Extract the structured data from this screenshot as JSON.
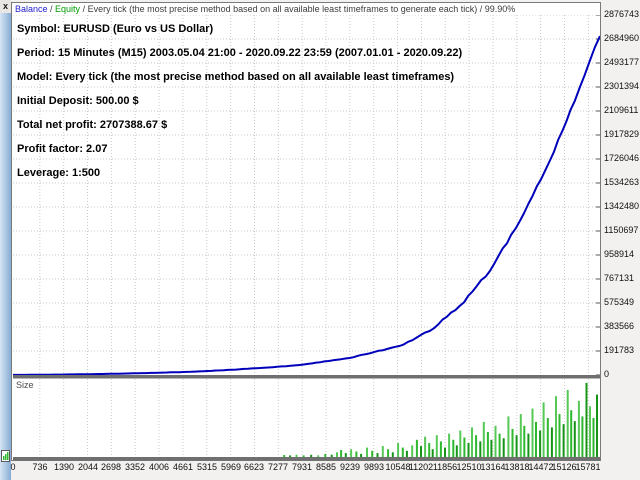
{
  "window": {
    "close_label": "x"
  },
  "header": {
    "balance_label": "Balance",
    "separator": " / ",
    "equity_label": "Equity",
    "tail_text": " / Every tick (the most precise method based on all available least timeframes to generate each tick) / 99.90%",
    "balance_color": "#2222cc",
    "equity_color": "#009900"
  },
  "info_lines": [
    "Symbol: EURUSD (Euro vs US Dollar)",
    "Period: 15 Minutes (M15) 2003.05.04 21:00 - 2020.09.22 23:59 (2007.01.01 - 2020.09.22)",
    "Model: Every tick (the most precise method based on all available least timeframes)",
    "Initial Deposit: 500.00 $",
    "Total net profit: 2707388.67 $",
    "Profit factor: 2.07",
    "Leverage: 1:500"
  ],
  "size_panel": {
    "label": "Size"
  },
  "chart_data": {
    "type": "line",
    "title": "Balance / Equity",
    "grid": "dotted",
    "x_range": [
      0,
      16100
    ],
    "y_range": [
      0,
      2876743
    ],
    "x_ticks": [
      0,
      736,
      1390,
      2044,
      2698,
      3352,
      4006,
      4661,
      5315,
      5969,
      6623,
      7277,
      7931,
      8585,
      9239,
      9893,
      10548,
      11202,
      11856,
      12510,
      13164,
      13818,
      14472,
      15126,
      15781
    ],
    "y_ticks": [
      2876743,
      2684960,
      2493177,
      2301394,
      2109611,
      1917829,
      1726046,
      1534263,
      1342480,
      1150697,
      958914,
      767131,
      575349,
      383566,
      191783,
      0
    ],
    "series": [
      {
        "name": "Balance",
        "color": "#0000bb",
        "points": [
          [
            0,
            500
          ],
          [
            1000,
            2500
          ],
          [
            2000,
            6000
          ],
          [
            3000,
            11000
          ],
          [
            4000,
            18000
          ],
          [
            5000,
            27000
          ],
          [
            6000,
            42000
          ],
          [
            7000,
            60000
          ],
          [
            7860,
            80000
          ],
          [
            9230,
            136000
          ],
          [
            10600,
            232000
          ],
          [
            11430,
            352000
          ],
          [
            12250,
            551000
          ],
          [
            13080,
            831000
          ],
          [
            13900,
            1230000
          ],
          [
            14720,
            1710000
          ],
          [
            15410,
            2190000
          ],
          [
            15820,
            2510000
          ],
          [
            16100,
            2707889
          ]
        ]
      }
    ],
    "size_histogram": {
      "colors": [
        "#2eb82e",
        "#169416",
        "#55c855"
      ],
      "bars": [
        [
          0.462,
          0.025
        ],
        [
          0.472,
          0.02
        ],
        [
          0.483,
          0.03
        ],
        [
          0.495,
          0.02
        ],
        [
          0.508,
          0.028
        ],
        [
          0.52,
          0.022
        ],
        [
          0.532,
          0.04
        ],
        [
          0.543,
          0.03
        ],
        [
          0.552,
          0.06
        ],
        [
          0.559,
          0.09
        ],
        [
          0.567,
          0.05
        ],
        [
          0.576,
          0.1
        ],
        [
          0.585,
          0.07
        ],
        [
          0.593,
          0.04
        ],
        [
          0.603,
          0.12
        ],
        [
          0.612,
          0.08
        ],
        [
          0.621,
          0.05
        ],
        [
          0.63,
          0.14
        ],
        [
          0.639,
          0.1
        ],
        [
          0.647,
          0.06
        ],
        [
          0.656,
          0.18
        ],
        [
          0.664,
          0.12
        ],
        [
          0.671,
          0.08
        ],
        [
          0.68,
          0.15
        ],
        [
          0.688,
          0.22
        ],
        [
          0.695,
          0.14
        ],
        [
          0.702,
          0.26
        ],
        [
          0.709,
          0.18
        ],
        [
          0.715,
          0.1
        ],
        [
          0.722,
          0.28
        ],
        [
          0.729,
          0.2
        ],
        [
          0.736,
          0.12
        ],
        [
          0.743,
          0.3
        ],
        [
          0.75,
          0.22
        ],
        [
          0.756,
          0.15
        ],
        [
          0.762,
          0.34
        ],
        [
          0.769,
          0.25
        ],
        [
          0.776,
          0.18
        ],
        [
          0.782,
          0.38
        ],
        [
          0.789,
          0.28
        ],
        [
          0.796,
          0.2
        ],
        [
          0.802,
          0.45
        ],
        [
          0.809,
          0.32
        ],
        [
          0.815,
          0.22
        ],
        [
          0.822,
          0.4
        ],
        [
          0.829,
          0.3
        ],
        [
          0.836,
          0.24
        ],
        [
          0.844,
          0.52
        ],
        [
          0.851,
          0.36
        ],
        [
          0.858,
          0.28
        ],
        [
          0.865,
          0.55
        ],
        [
          0.871,
          0.4
        ],
        [
          0.878,
          0.3
        ],
        [
          0.885,
          0.62
        ],
        [
          0.891,
          0.45
        ],
        [
          0.898,
          0.34
        ],
        [
          0.904,
          0.7
        ],
        [
          0.911,
          0.5
        ],
        [
          0.918,
          0.38
        ],
        [
          0.925,
          0.78
        ],
        [
          0.931,
          0.55
        ],
        [
          0.938,
          0.42
        ],
        [
          0.945,
          0.86
        ],
        [
          0.951,
          0.6
        ],
        [
          0.957,
          0.46
        ],
        [
          0.964,
          0.72
        ],
        [
          0.97,
          0.52
        ],
        [
          0.977,
          0.95
        ],
        [
          0.983,
          0.65
        ],
        [
          0.989,
          0.5
        ],
        [
          0.995,
          0.8
        ]
      ]
    }
  }
}
